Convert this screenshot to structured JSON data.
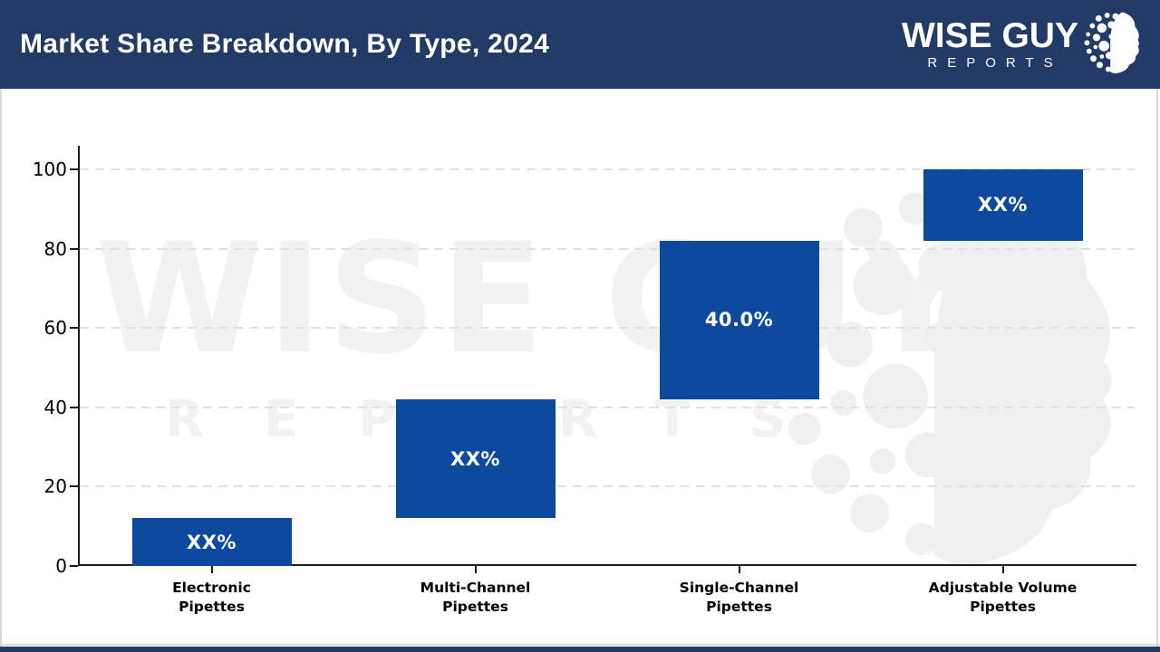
{
  "header": {
    "title": "Market Share Breakdown, By Type, 2024",
    "brand": {
      "line1": "WISE GUY",
      "line2": "REPORTS"
    }
  },
  "watermark": {
    "line1": "WISE GUY",
    "line2": "REPORTS"
  },
  "footer": {},
  "colors": {
    "header_navy": "#213a66",
    "bar_blue": "#0d4a9e",
    "gridline_gray": "#e1e1e1",
    "watermark_gray": "#f2f2f2",
    "border_gray": "#d9d9d9"
  },
  "chart_data": {
    "type": "bar",
    "subtype": "waterfall",
    "title": "Market Share Breakdown, By Type, 2024",
    "categories": [
      "Electronic Pipettes",
      "Multi-Channel Pipettes",
      "Single-Channel Pipettes",
      "Adjustable Volume Pipettes"
    ],
    "category_label_lines": [
      [
        "Electronic",
        "Pipettes"
      ],
      [
        "Multi-Channel",
        "Pipettes"
      ],
      [
        "Single-Channel",
        "Pipettes"
      ],
      [
        "Adjustable Volume",
        "Pipettes"
      ]
    ],
    "segments": [
      {
        "category": "Electronic Pipettes",
        "start": 0,
        "end": 12,
        "value": 12,
        "value_label": "XX%"
      },
      {
        "category": "Multi-Channel Pipettes",
        "start": 12,
        "end": 42,
        "value": 30,
        "value_label": "XX%"
      },
      {
        "category": "Single-Channel Pipettes",
        "start": 42,
        "end": 82,
        "value": 40,
        "value_label": "40.0%"
      },
      {
        "category": "Adjustable Volume Pipettes",
        "start": 82,
        "end": 100,
        "value": 18,
        "value_label": "XX%"
      }
    ],
    "ylim": [
      0,
      100
    ],
    "yticks": [
      0,
      20,
      40,
      60,
      80,
      100
    ],
    "xlabel": "",
    "ylabel": "",
    "grid": "horizontal-dashed",
    "legend": "none",
    "bar_color": "#0d4a9e",
    "bar_label_color": "#ffffff"
  }
}
